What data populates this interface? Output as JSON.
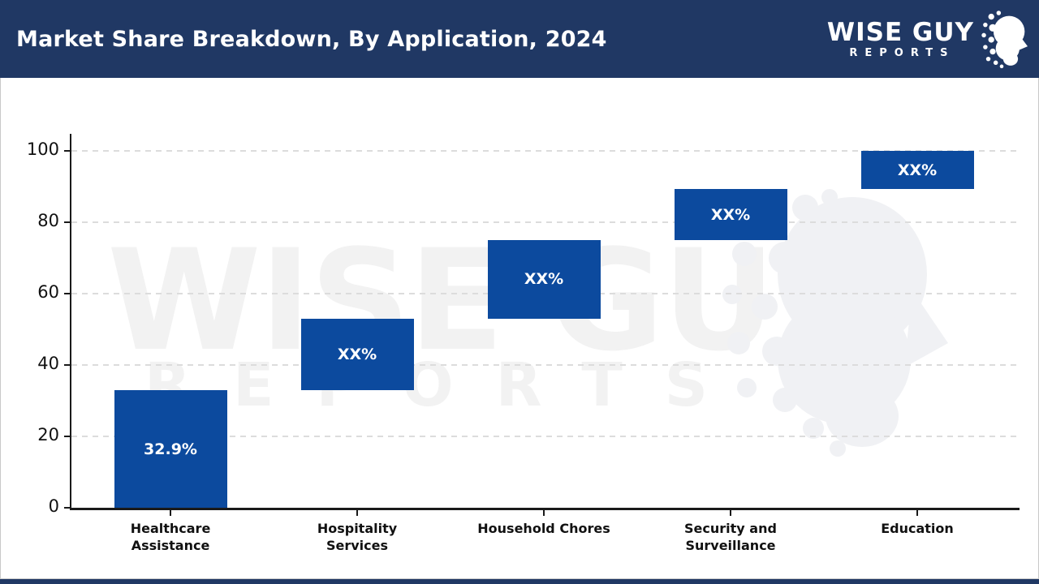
{
  "header": {
    "title": "Market Share Breakdown, By Application, 2024",
    "logo": {
      "line1": "WISE GUY",
      "line2": "REPORTS"
    }
  },
  "watermark": {
    "line1": "WISE GUY",
    "line2": "REPORTS"
  },
  "colors": {
    "header_bg": "#203864",
    "bar": "#0c4a9e",
    "grid": "#dcdcdc",
    "axis": "#1a1a1a",
    "bar_label_text": "#ffffff",
    "tick_text": "#111111"
  },
  "chart_data": {
    "type": "bar",
    "subtype": "waterfall",
    "title": "Market Share Breakdown, By Application, 2024",
    "xlabel": "",
    "ylabel": "",
    "ylim": [
      0,
      100
    ],
    "yticks": [
      0,
      20,
      40,
      60,
      80,
      100
    ],
    "grid": "horizontal-dashed",
    "legend": "none",
    "categories": [
      "Healthcare Assistance",
      "Hospitality Services",
      "Household Chores",
      "Security and Surveillance",
      "Education"
    ],
    "category_lines": [
      [
        "Healthcare",
        "Assistance"
      ],
      [
        "Hospitality",
        "Services"
      ],
      [
        "Household Chores"
      ],
      [
        "Security and",
        "Surveillance"
      ],
      [
        "Education"
      ]
    ],
    "bars": [
      {
        "start": 0,
        "end": 32.9,
        "value": 32.9,
        "label": "32.9%"
      },
      {
        "start": 32.9,
        "end": 53,
        "value": 20.1,
        "label": "XX%"
      },
      {
        "start": 53,
        "end": 75,
        "value": 22,
        "label": "XX%"
      },
      {
        "start": 75,
        "end": 89.3,
        "value": 14.3,
        "label": "XX%"
      },
      {
        "start": 89.3,
        "end": 100,
        "value": 10.7,
        "label": "XX%"
      }
    ]
  }
}
